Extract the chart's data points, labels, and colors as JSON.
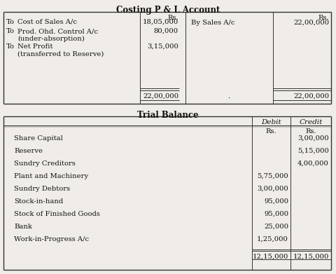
{
  "bg_color": "#f0ede8",
  "title1": "Costing P & L Account",
  "title2": "Trial Balance",
  "pl_left": [
    {
      "prefix": "To",
      "label": "Cost of Sales A/c",
      "amount": "18,05,000"
    },
    {
      "prefix": "To",
      "label": "Prod. Ohd. Control A/c",
      "amount": "80,000"
    },
    {
      "prefix": "",
      "label": "(under-absorption)",
      "amount": ""
    },
    {
      "prefix": "To",
      "label": "Net Profit",
      "amount": "3,15,000"
    },
    {
      "prefix": "",
      "label": "(transferred to Reserve)",
      "amount": ""
    }
  ],
  "pl_left_total": "22,00,000",
  "pl_right_label": "By Sales A/c",
  "pl_right_amount": "22,00,000",
  "pl_right_total": "22,00,000",
  "tb_items": [
    {
      "label": "Share Capital",
      "debit": "",
      "credit": "3,00,000"
    },
    {
      "label": "Reserve",
      "debit": "",
      "credit": "5,15,000"
    },
    {
      "label": "Sundry Creditors",
      "debit": "",
      "credit": "4,00,000"
    },
    {
      "label": "Plant and Machinery",
      "debit": "5,75,000",
      "credit": ""
    },
    {
      "label": "Sundry Debtors",
      "debit": "3,00,000",
      "credit": ""
    },
    {
      "label": "Stock-in-hand",
      "debit": "95,000",
      "credit": ""
    },
    {
      "label": "Stock of Finished Goods",
      "debit": "95,000",
      "credit": ""
    },
    {
      "label": "Bank",
      "debit": "25,000",
      "credit": ""
    },
    {
      "label": "Work-in-Progress A/c",
      "debit": "1,25,000",
      "credit": ""
    }
  ],
  "tb_debit_total": "12,15,000",
  "tb_credit_total": "12,15,000"
}
